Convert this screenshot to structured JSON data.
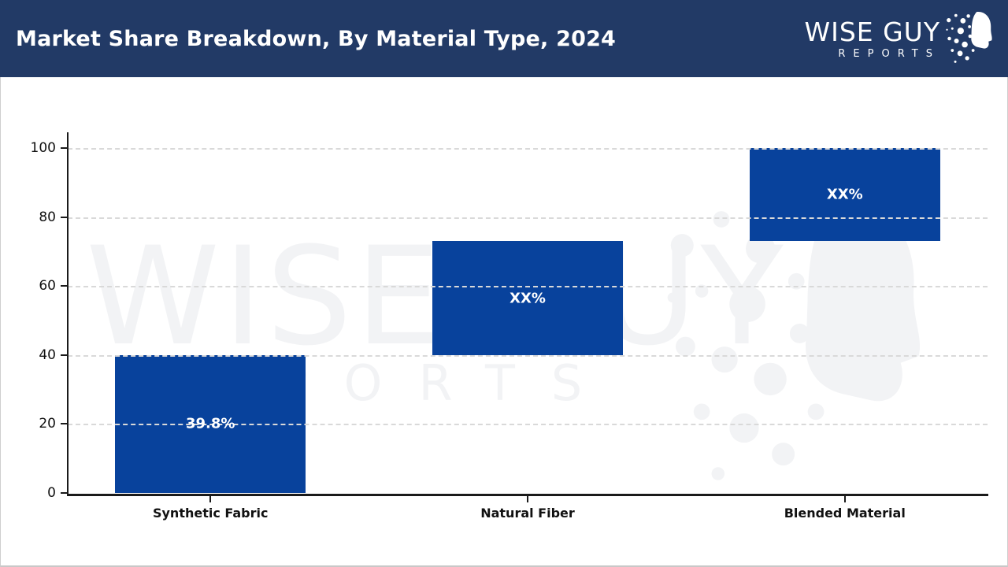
{
  "header": {
    "logo": {
      "line1": "WISE GUY",
      "line2": "REPORTS"
    }
  },
  "watermark": {
    "line1": "WISE GUY",
    "line2": "REPORTS"
  },
  "colors": {
    "header_bg": "#223A66",
    "bar_blue": "#08429C",
    "gridline": "#D9D9D9",
    "axis": "#1A1A1A",
    "watermark": "#F2F3F5",
    "bar_label": "#FFFFFF",
    "tick_label": "#111111"
  },
  "chart_data": {
    "type": "bar",
    "subtype": "waterfall",
    "title": "Market Share Breakdown, By Material Type, 2024",
    "categories": [
      "Synthetic Fabric",
      "Natural Fiber",
      "Blended Material"
    ],
    "bars": [
      {
        "category": "Synthetic Fabric",
        "start": 0,
        "end": 39.8,
        "label": "39.8%"
      },
      {
        "category": "Natural Fiber",
        "start": 39.8,
        "end": 73,
        "label": "XX%"
      },
      {
        "category": "Blended Material",
        "start": 73,
        "end": 100,
        "label": "XX%"
      }
    ],
    "ylim": [
      0,
      100
    ],
    "yticks": [
      0,
      20,
      40,
      60,
      80,
      100
    ],
    "xlabel": "",
    "ylabel": "",
    "grid": "horizontal-dashed-over-bars",
    "legend": "none",
    "bar_color": "#08429C",
    "bar_label_color": "#FFFFFF"
  }
}
